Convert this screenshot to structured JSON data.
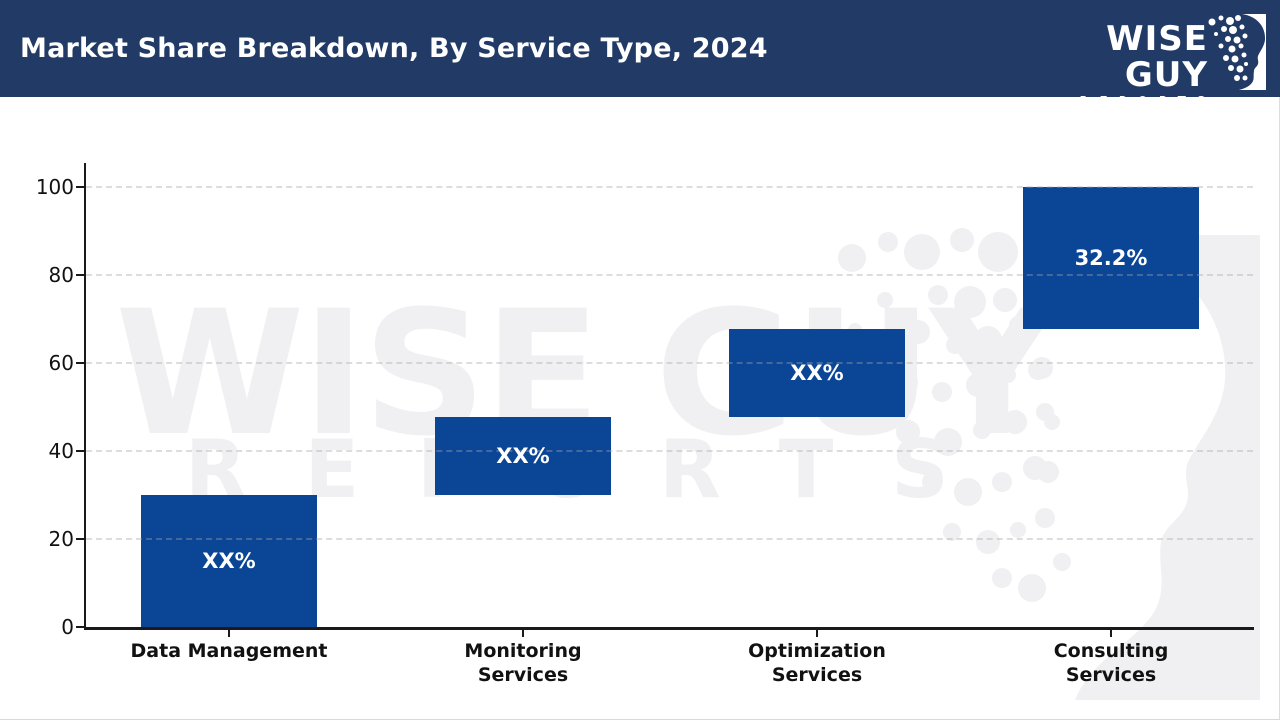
{
  "header": {
    "title": "Market Share Breakdown, By Service Type, 2024",
    "logo": {
      "line1": "WISE GUY",
      "line2": "REPORTS"
    }
  },
  "watermark": {
    "line1": "WISE GUY",
    "line2": "R E P O R T S"
  },
  "chart_data": {
    "type": "bar",
    "variant": "waterfall",
    "title": "Market Share Breakdown, By Service Type, 2024",
    "categories": [
      "Data Management",
      "Monitoring Services",
      "Optimization Services",
      "Consulting Services"
    ],
    "category_label_lines": [
      [
        "Data Management"
      ],
      [
        "Monitoring",
        "Services"
      ],
      [
        "Optimization",
        "Services"
      ],
      [
        "Consulting",
        "Services"
      ]
    ],
    "segments": [
      {
        "category": "Data Management",
        "start": 0,
        "end": 30,
        "value": 30,
        "label": "XX%"
      },
      {
        "category": "Monitoring Services",
        "start": 30,
        "end": 47.8,
        "value": 17.8,
        "label": "XX%"
      },
      {
        "category": "Optimization Services",
        "start": 47.8,
        "end": 67.8,
        "value": 20,
        "label": "XX%"
      },
      {
        "category": "Consulting Services",
        "start": 67.8,
        "end": 100,
        "value": 32.2,
        "label": "32.2%"
      }
    ],
    "ylim": [
      0,
      105
    ],
    "yticks": [
      0,
      20,
      40,
      60,
      80,
      100
    ],
    "xlabel": "",
    "ylabel": "",
    "grid": "horizontal-dashed",
    "legend": "none",
    "bar_color": "#0b4596"
  },
  "colors": {
    "header_bg": "#213a66",
    "bar": "#0b4596",
    "axis": "#1a1a1a",
    "grid": "#c9c9c9",
    "watermark": "#f0f0f2",
    "background": "#ffffff"
  }
}
